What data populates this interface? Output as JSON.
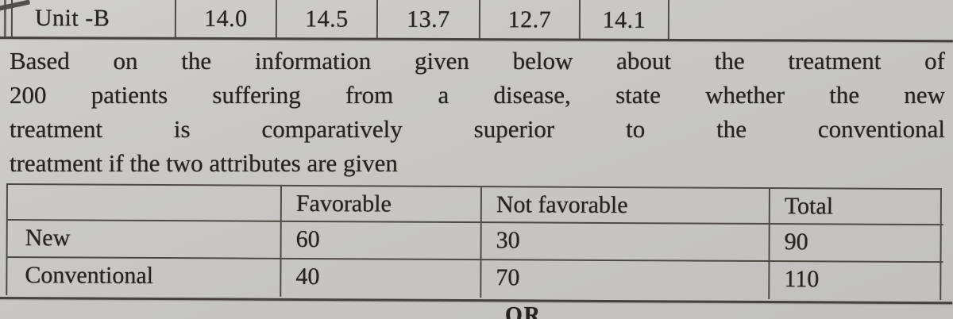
{
  "theme": {
    "paper": "#c8c7c4",
    "ink": "#26241f",
    "line": "#4e4b47"
  },
  "top_table": {
    "row_label": "Unit -B",
    "values": [
      "14.0",
      "14.5",
      "13.7",
      "12.7",
      "14.1"
    ]
  },
  "question_text": {
    "lines": [
      "Based on the information given below about the treatment of",
      "200 patients suffering from a disease, state whether the new",
      "treatment is comparatively superior to the conventional",
      "treatment if the two attributes are given"
    ]
  },
  "treatment_table": {
    "headers": {
      "col0": "",
      "col1": "Favorable",
      "col2": "Not favorable",
      "col3": "Total"
    },
    "rows": [
      {
        "label": "New",
        "favorable": "60",
        "not_favorable": "30",
        "total": "90"
      },
      {
        "label": "Conventional",
        "favorable": "40",
        "not_favorable": "70",
        "total": "110"
      }
    ],
    "total_patients_mentioned": "200"
  },
  "divider": {
    "label": "OR"
  }
}
